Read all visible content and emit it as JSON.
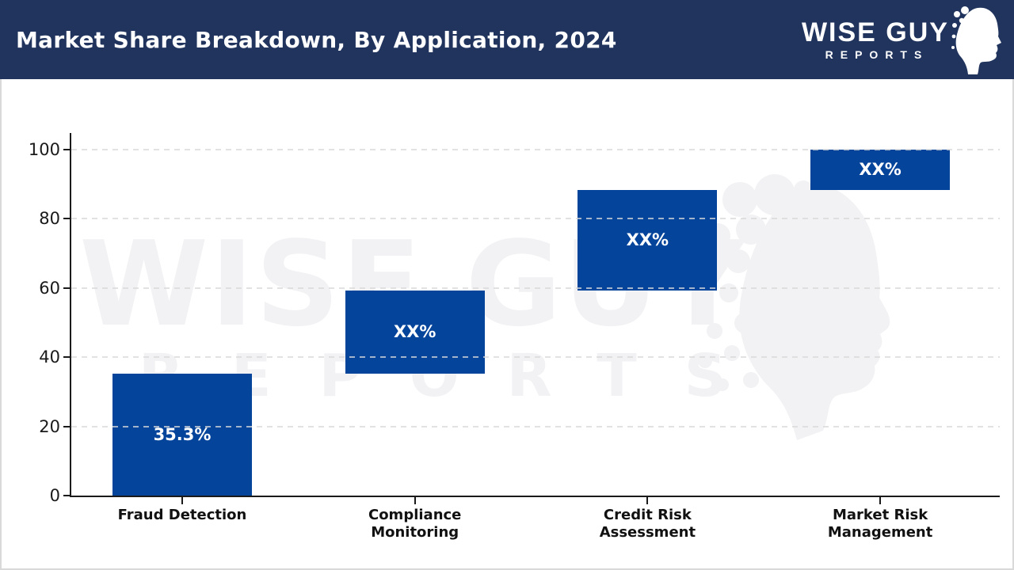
{
  "header": {
    "title": "Market Share Breakdown, By Application, 2024",
    "bg_color": "#20345e",
    "logo": {
      "line1": "WISE GUY",
      "line2": "REPORTS"
    }
  },
  "watermark": {
    "line1": "WISE GUY",
    "line2": "REPORTS"
  },
  "chart_data": {
    "type": "bar",
    "subtype": "waterfall",
    "title": "Market Share Breakdown, By Application, 2024",
    "categories": [
      "Fraud Detection",
      "Compliance\nMonitoring",
      "Credit Risk\nAssessment",
      "Market Risk\nManagement"
    ],
    "segments": [
      {
        "category": "Fraud Detection",
        "start": 0,
        "end": 35.3,
        "label": "35.3%"
      },
      {
        "category": "Compliance Monitoring",
        "start": 35.3,
        "end": 59.3,
        "label": "XX%"
      },
      {
        "category": "Credit Risk Assessment",
        "start": 59.3,
        "end": 88.3,
        "label": "XX%"
      },
      {
        "category": "Market Risk Management",
        "start": 88.3,
        "end": 100,
        "label": "XX%"
      }
    ],
    "ylim": [
      0,
      100
    ],
    "yticks": [
      0,
      20,
      40,
      60,
      80,
      100
    ],
    "xlabel": "",
    "ylabel": "",
    "legend": false,
    "grid": "horizontal-dashed",
    "bar_color": "#05449b",
    "bar_label_color": "#ffffff",
    "axis_color": "#1a1a1a",
    "gridline_color": "#d9d9d9"
  }
}
